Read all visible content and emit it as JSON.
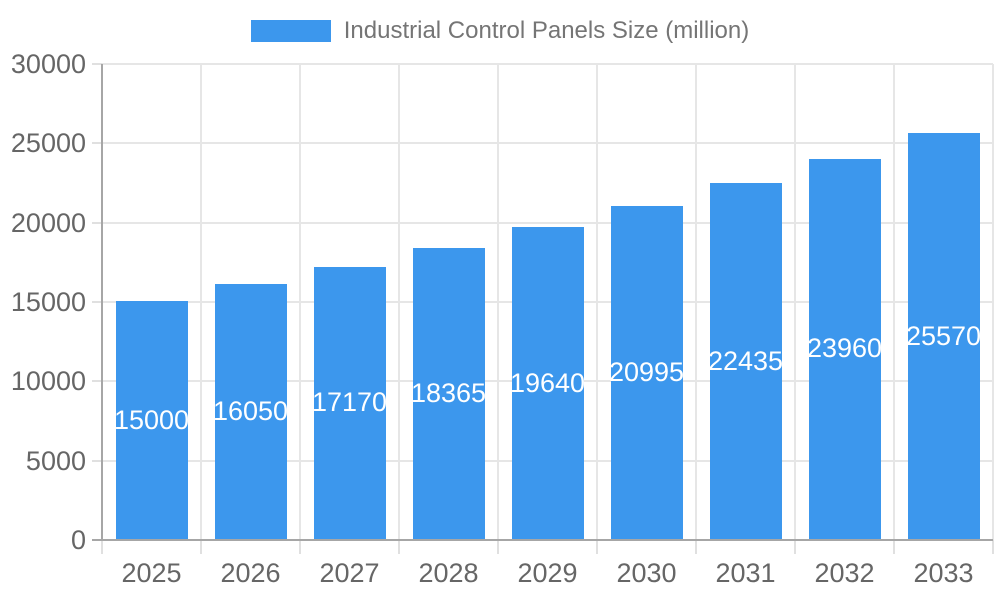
{
  "legend": {
    "label": "Industrial Control Panels Size (million)"
  },
  "colors": {
    "bar": "#3c97ed",
    "grid": "#e6e6e6",
    "tick": "#e0e0e0",
    "axis": "#a6a6a6",
    "axis_label": "#666666",
    "legend_text": "#757575",
    "bar_label": "#ffffff",
    "background": "#ffffff"
  },
  "chart_data": {
    "type": "bar",
    "title": "Industrial Control Panels Size (million)",
    "categories": [
      "2025",
      "2026",
      "2027",
      "2028",
      "2029",
      "2030",
      "2031",
      "2032",
      "2033"
    ],
    "values": [
      15000,
      16050,
      17170,
      18365,
      19640,
      20995,
      22435,
      23960,
      25570
    ],
    "series_name": "Industrial Control Panels Size (million)",
    "xlabel": "",
    "ylabel": "",
    "ylim": [
      0,
      30000
    ],
    "yticks": [
      0,
      5000,
      10000,
      15000,
      20000,
      25000,
      30000
    ],
    "grid": true,
    "legend_position": "top-center",
    "value_labels_position": "inside-center"
  }
}
